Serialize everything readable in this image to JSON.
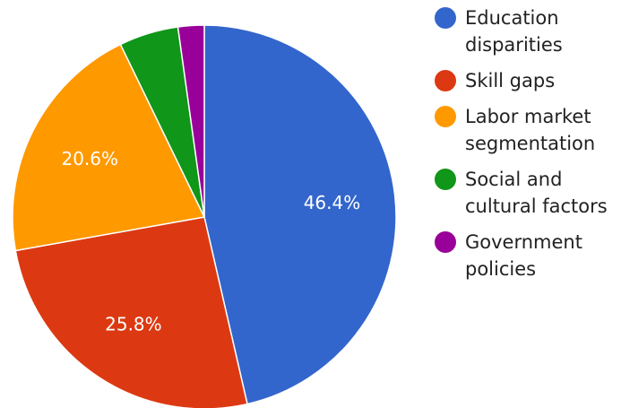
{
  "chart_data": {
    "type": "pie",
    "title": "",
    "slices": [
      {
        "label": "Education disparities",
        "legend_lines": [
          "Education",
          "disparities"
        ],
        "value": 46.4,
        "color": "#3366cc",
        "show_label": true
      },
      {
        "label": "Skill gaps",
        "legend_lines": [
          "Skill gaps"
        ],
        "value": 25.8,
        "color": "#dc3912",
        "show_label": true
      },
      {
        "label": "Labor market segmentation",
        "legend_lines": [
          "Labor market",
          "segmentation"
        ],
        "value": 20.6,
        "color": "#ff9900",
        "show_label": true
      },
      {
        "label": "Social and cultural factors",
        "legend_lines": [
          "Social and",
          "cultural factors"
        ],
        "value": 5.0,
        "color": "#109618",
        "show_label": false
      },
      {
        "label": "Government policies",
        "legend_lines": [
          "Government",
          "policies"
        ],
        "value": 2.2,
        "color": "#990099",
        "show_label": false
      }
    ],
    "start_angle_deg": 0,
    "direction": "clockwise",
    "legend_position": "right",
    "value_suffix": "%"
  }
}
